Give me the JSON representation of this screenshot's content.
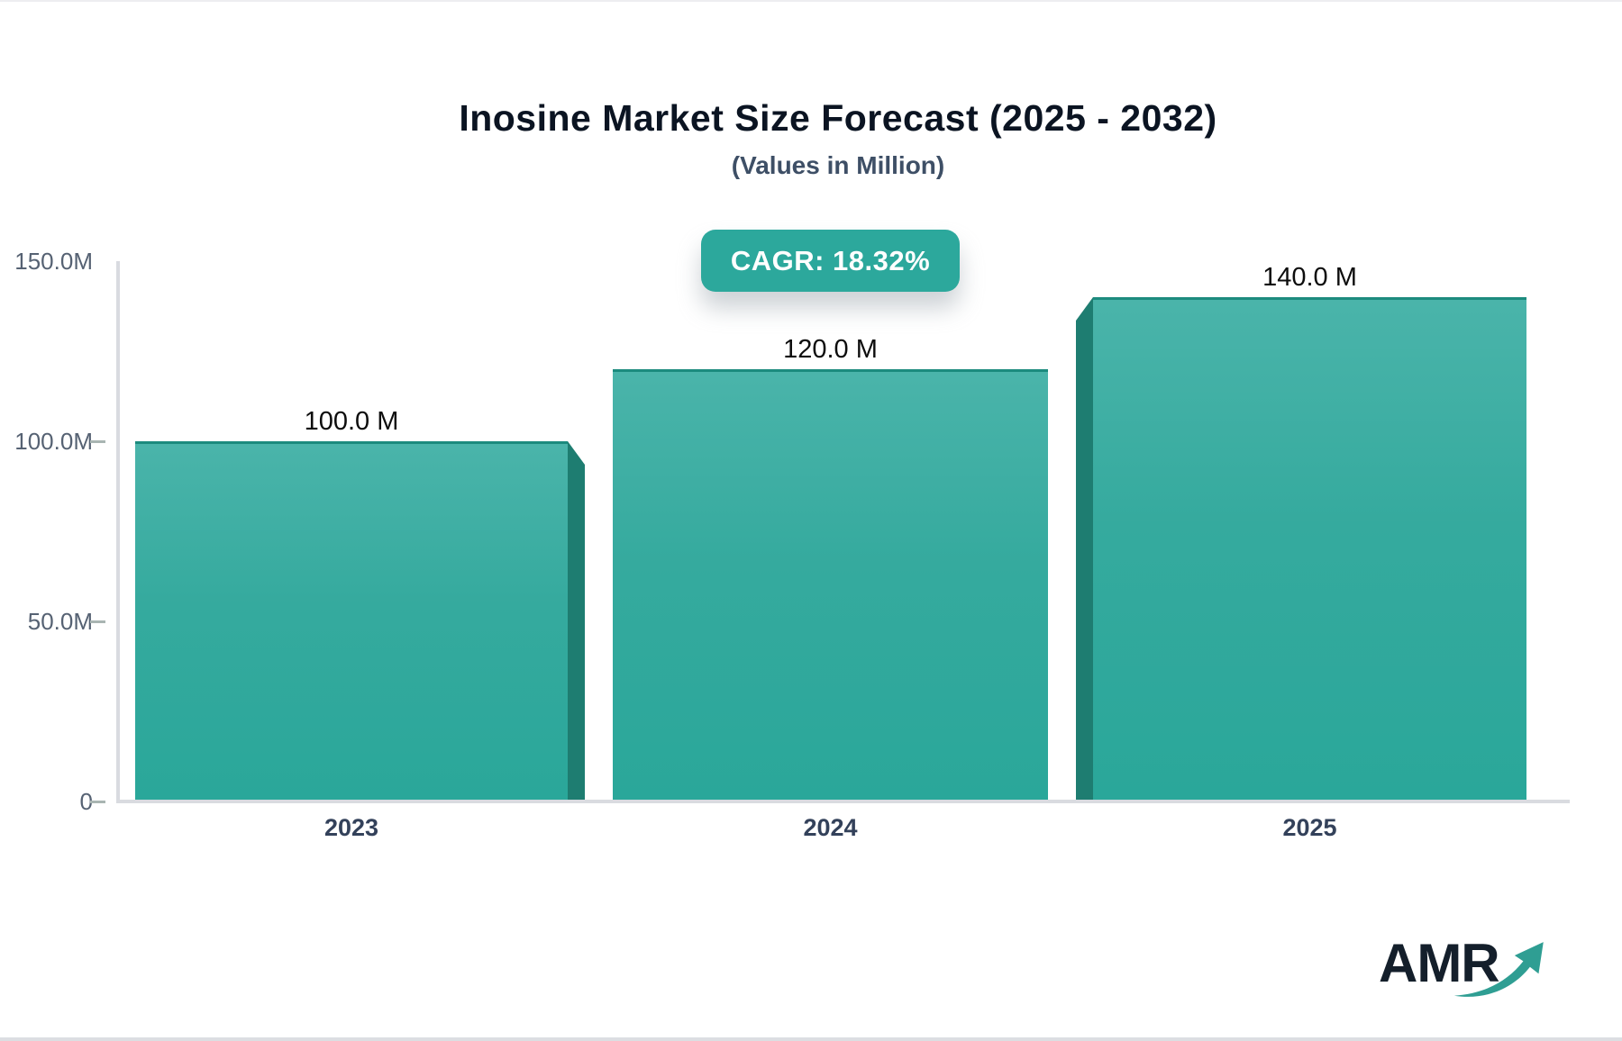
{
  "header": {
    "title": "Inosine Market Size Forecast (2025 - 2032)",
    "subtitle": "(Values in Million)",
    "cagr_badge": "CAGR: 18.32%"
  },
  "chart_data": {
    "type": "bar",
    "title": "Inosine Market Size Forecast (2025 - 2032)",
    "subtitle": "(Values in Million)",
    "unit": "Million",
    "cagr_percent": 18.32,
    "categories": [
      "2023",
      "2024",
      "2025"
    ],
    "values": [
      100.0,
      120.0,
      140.0
    ],
    "value_labels": [
      "100.0 M",
      "120.0 M",
      "140.0 M"
    ],
    "ylim": [
      0,
      150
    ],
    "y_ticks": [
      {
        "label": "150.0M",
        "value": 150
      },
      {
        "label": "100.0M",
        "value": 100
      },
      {
        "label": "50.0M",
        "value": 50
      },
      {
        "label": "0",
        "value": 0
      }
    ],
    "grid": false,
    "legend": "none",
    "colors": {
      "bar_top": "#4ab4aa",
      "bar_bottom": "#2aa79a",
      "bar_side_3d": "#1e7d71",
      "bar_top_edge": "#1c8b7e",
      "axis_line": "#d9dbe0",
      "badge_background": "#2ca89c",
      "badge_text": "#ffffff"
    }
  },
  "logo": {
    "text": "AMR"
  }
}
